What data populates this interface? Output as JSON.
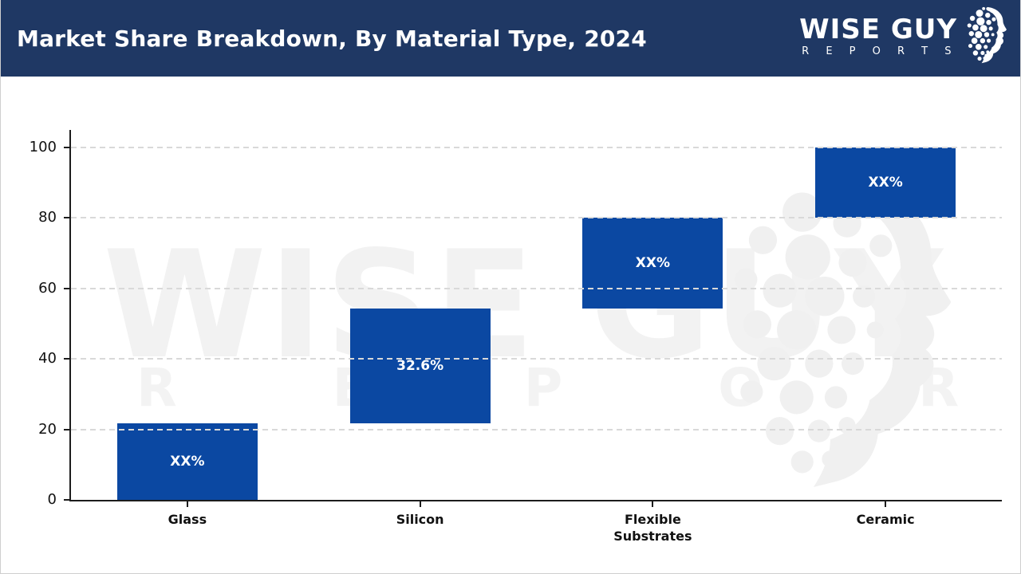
{
  "header": {
    "title": "Market Share Breakdown, By Material Type, 2024",
    "bg_color": "#1f3864",
    "logo": {
      "line1": "WISE GUY",
      "line2": "R E P O R T S"
    }
  },
  "watermark": {
    "line1": "WISE GUY",
    "line2": "R E P O R T S"
  },
  "chart_data": {
    "type": "bar",
    "subtype": "waterfall",
    "title": "Market Share Breakdown, By Material Type, 2024",
    "categories": [
      "Glass",
      "Silicon",
      "Flexible\nSubstrates",
      "Ceramic"
    ],
    "segments": [
      {
        "category": "Glass",
        "start": 0,
        "end": 21.8,
        "label": "XX%"
      },
      {
        "category": "Silicon",
        "start": 21.8,
        "end": 54.4,
        "label": "32.6%"
      },
      {
        "category": "Flexible Substrates",
        "start": 54.4,
        "end": 80,
        "label": "XX%"
      },
      {
        "category": "Ceramic",
        "start": 80,
        "end": 100,
        "label": "XX%"
      }
    ],
    "yticks": [
      0,
      20,
      40,
      60,
      80,
      100
    ],
    "ylim": [
      0,
      105
    ],
    "xlabel": "",
    "ylabel": "",
    "grid": true,
    "gridline_color": "#d9d9d9",
    "bar_color": "#0b48a2",
    "label_color": "#ffffff",
    "axis_color": "#1c1c1c"
  }
}
